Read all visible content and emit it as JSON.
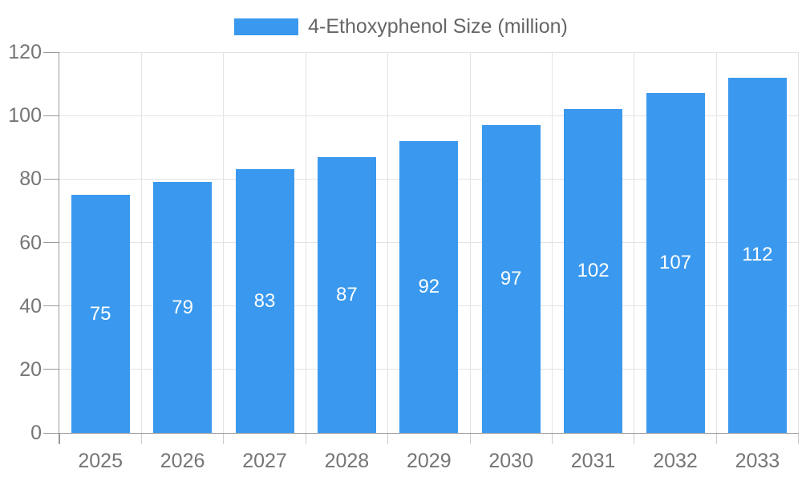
{
  "legend": {
    "label": "4-Ethoxyphenol Size (million)"
  },
  "colors": {
    "bar": "#3A99EE",
    "axis": "#999999",
    "grid": "#E3E3E3",
    "x_boundary_tick": "#CCCCCC",
    "tick_text": "#757575",
    "legend_text": "#666666",
    "bar_label": "#FFFFFF",
    "background": "#FFFFFF"
  },
  "chart_data": {
    "type": "bar",
    "title": "",
    "categories": [
      "2025",
      "2026",
      "2027",
      "2028",
      "2029",
      "2030",
      "2031",
      "2032",
      "2033"
    ],
    "values": [
      75,
      79,
      83,
      87,
      92,
      97,
      102,
      107,
      112
    ],
    "series": [
      {
        "name": "4-Ethoxyphenol Size (million)",
        "values": [
          75,
          79,
          83,
          87,
          92,
          97,
          102,
          107,
          112
        ]
      }
    ],
    "xlabel": "",
    "ylabel": "",
    "ylim": [
      0,
      120
    ],
    "yticks": [
      0,
      20,
      40,
      60,
      80,
      100,
      120
    ],
    "grid": true,
    "legend_position": "top-center",
    "bar_value_labels": [
      75,
      79,
      83,
      87,
      92,
      97,
      102,
      107,
      112
    ],
    "bar_value_label_position": "inside-middle"
  }
}
